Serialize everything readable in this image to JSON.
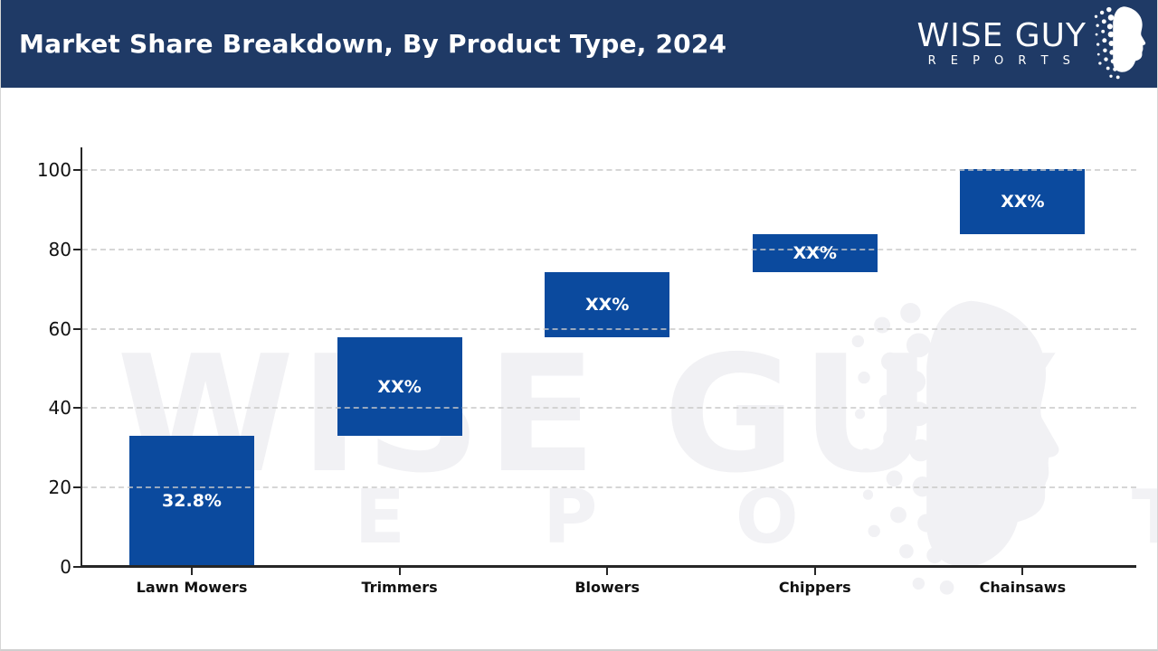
{
  "header": {
    "title": "Market Share Breakdown, By Product Type, 2024",
    "logo": {
      "line1": "WISE GUY",
      "line2": "R E P O R T S",
      "icon": "head-profile-dots-icon"
    }
  },
  "watermark": {
    "line1": "WISE GUY",
    "line2": "R E P O R T S"
  },
  "colors": {
    "header_bg": "#1f3a66",
    "title_text": "#ffffff",
    "bar_fill": "#0b4a9e",
    "bar_label_text": "#ffffff",
    "axis": "#262626",
    "tick_text": "#111111",
    "gridline": "#c8c8c8",
    "watermark": "#f1f1f4",
    "background": "#ffffff"
  },
  "chart_data": {
    "type": "bar",
    "subtype": "waterfall",
    "title": "Market Share Breakdown, By Product Type, 2024",
    "categories": [
      "Lawn Mowers",
      "Trimmers",
      "Blowers",
      "Chippers",
      "Chainsaws"
    ],
    "segments": [
      {
        "category": "Lawn Mowers",
        "start": 0,
        "end": 32.8,
        "label": "32.8%"
      },
      {
        "category": "Trimmers",
        "start": 32.8,
        "end": 57.6,
        "label": "XX%"
      },
      {
        "category": "Blowers",
        "start": 57.6,
        "end": 74.0,
        "label": "XX%"
      },
      {
        "category": "Chippers",
        "start": 74.0,
        "end": 83.6,
        "label": "XX%"
      },
      {
        "category": "Chainsaws",
        "start": 83.6,
        "end": 100.0,
        "label": "XX%"
      }
    ],
    "xlabel": "",
    "ylabel": "",
    "ylim": [
      0,
      100
    ],
    "yticks": [
      0,
      20,
      40,
      60,
      80,
      100
    ],
    "grid": "horizontal-dashed",
    "legend": "none",
    "bar_value_labels_inside": true
  }
}
